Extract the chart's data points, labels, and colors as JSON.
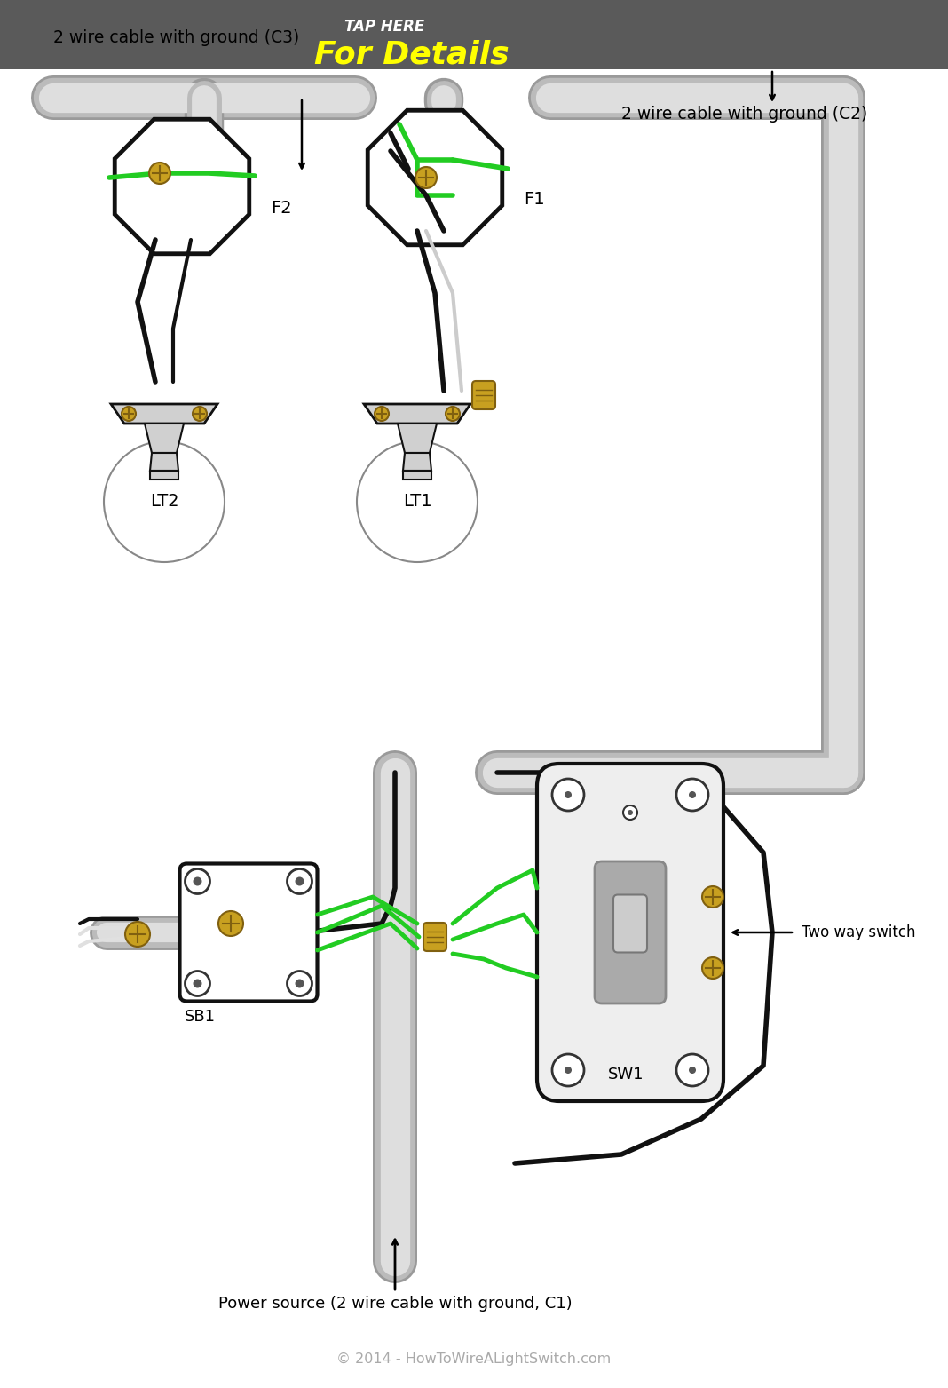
{
  "bg_top": "#5a5a5a",
  "bg_main": "#ffffff",
  "tap_here_text": "TAP HERE",
  "for_details_text": "For Details",
  "label_c3": "2 wire cable with ground (C3)",
  "label_c2": "2 wire cable with ground (C2)",
  "label_f2": "F2",
  "label_f1": "F1",
  "label_lt2": "LT2",
  "label_lt1": "LT1",
  "label_sb1": "SB1",
  "label_sw1": "SW1",
  "label_two_way": "Two way switch",
  "label_power": "Power source (2 wire cable with ground, C1)",
  "label_copyright": "© 2014 - HowToWireALightSwitch.com",
  "wire_black": "#111111",
  "wire_green": "#22cc22",
  "wire_white": "#e0e0e0",
  "cable_outer": "#b8b8b8",
  "cable_inner": "#e8e8e8",
  "box_outline": "#111111",
  "screw_color": "#c8a020",
  "screw_dark": "#806010",
  "bulb_fill": "#f0f0f0",
  "fixture_fill": "#d0d0d0"
}
